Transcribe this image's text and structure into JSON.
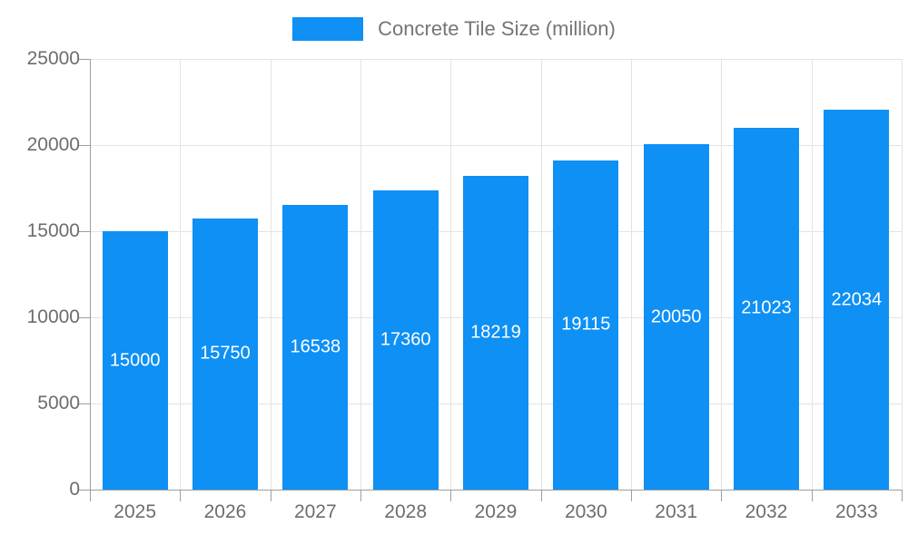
{
  "chart_data": {
    "type": "bar",
    "title": "Concrete Tile Size (million)",
    "categories": [
      "2025",
      "2026",
      "2027",
      "2028",
      "2029",
      "2030",
      "2031",
      "2032",
      "2033"
    ],
    "values": [
      15000,
      15750,
      16538,
      17360,
      18219,
      19115,
      20050,
      21023,
      22034
    ],
    "value_labels": [
      "15000",
      "15750",
      "16538",
      "17360",
      "18219",
      "19115",
      "20050",
      "21023",
      "22034"
    ],
    "xlabel": "",
    "ylabel": "",
    "ylim": [
      0,
      25000
    ],
    "yticks": [
      0,
      5000,
      10000,
      15000,
      20000,
      25000
    ],
    "ytick_labels": [
      "0",
      "5000",
      "10000",
      "15000",
      "20000",
      "25000"
    ],
    "grid": true,
    "legend": {
      "label": "Concrete Tile Size (million)",
      "position": "top"
    },
    "colors": {
      "bar": "#0e90f5",
      "grid": "#e3e3e3",
      "axis": "#9e9e9e",
      "tick_label": "#6d6d6d",
      "legend_text": "#757575",
      "value_label": "#ffffff",
      "background": "#ffffff"
    }
  }
}
